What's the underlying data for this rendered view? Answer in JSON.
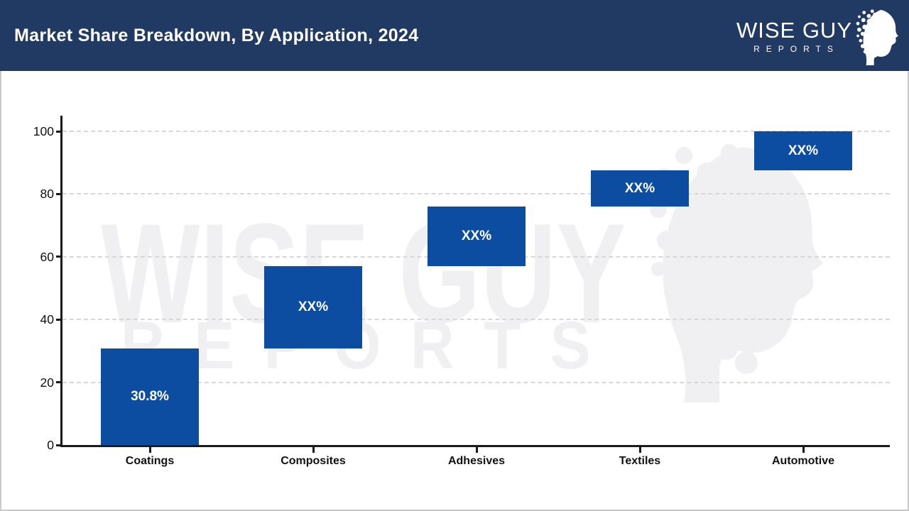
{
  "header": {
    "title": "Market Share Breakdown, By Application, 2024",
    "background_color": "#213a63",
    "logo": {
      "wordmark": "WISE GUY",
      "subline": "REPORTS"
    }
  },
  "watermark": {
    "wordmark": "WISE GUY",
    "subline": "REPORTS"
  },
  "chart_data": {
    "type": "bar",
    "variant": "waterfall",
    "title": "Market Share Breakdown, By Application, 2024",
    "categories": [
      "Coatings",
      "Composites",
      "Adhesives",
      "Textiles",
      "Automotive"
    ],
    "bars": [
      {
        "category": "Coatings",
        "start": 0,
        "end": 30.8,
        "label": "30.8%"
      },
      {
        "category": "Composites",
        "start": 30.8,
        "end": 57.0,
        "label": "XX%"
      },
      {
        "category": "Adhesives",
        "start": 57.0,
        "end": 76.0,
        "label": "XX%"
      },
      {
        "category": "Textiles",
        "start": 76.0,
        "end": 87.5,
        "label": "XX%"
      },
      {
        "category": "Automotive",
        "start": 87.5,
        "end": 100.0,
        "label": "XX%"
      }
    ],
    "y_ticks": [
      0,
      20,
      40,
      60,
      80,
      100
    ],
    "ylim": [
      0,
      100
    ],
    "xlabel": "",
    "ylabel": "",
    "legend": "none",
    "grid": "horizontal-dashed",
    "bar_color": "#0d4da1",
    "bar_label_color": "#ffffff",
    "axis_color": "#1a1a1a",
    "gridline_color": "#d8d8d8"
  }
}
